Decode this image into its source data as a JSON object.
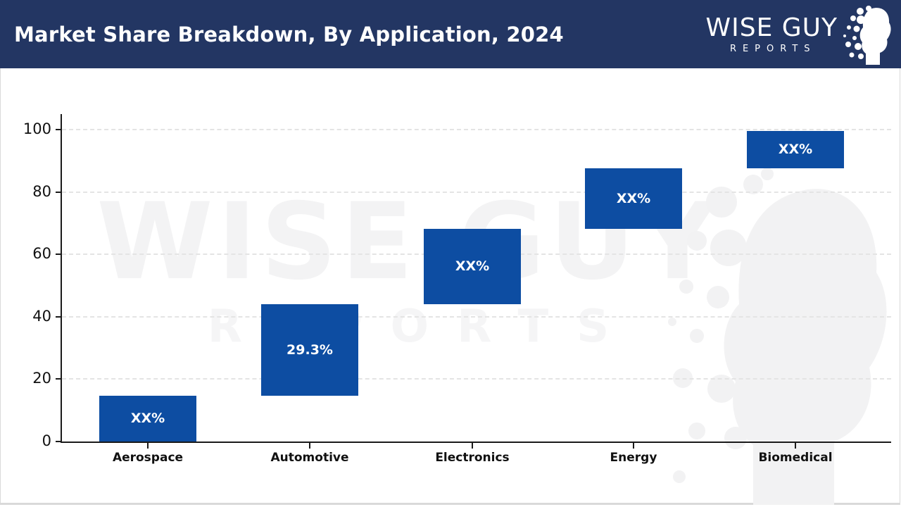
{
  "header": {
    "title": "Market Share Breakdown, By Application, 2024",
    "logo": {
      "line1": "WISE GUY",
      "line2": "REPORTS"
    }
  },
  "watermark": {
    "line1": "WISE GUY",
    "line2": "REPORTS"
  },
  "chart_data": {
    "type": "bar",
    "subtype": "waterfall-floating-bars",
    "title": "Market Share Breakdown, By Application, 2024",
    "categories": [
      "Aerospace",
      "Automotive",
      "Electronics",
      "Energy",
      "Biomedical"
    ],
    "segments": [
      {
        "category": "Aerospace",
        "start": 0,
        "end": 14.7,
        "label": "XX%"
      },
      {
        "category": "Automotive",
        "start": 14.7,
        "end": 44.0,
        "label": "29.3%"
      },
      {
        "category": "Electronics",
        "start": 44.0,
        "end": 68.2,
        "label": "XX%"
      },
      {
        "category": "Energy",
        "start": 68.2,
        "end": 87.6,
        "label": "XX%"
      },
      {
        "category": "Biomedical",
        "start": 87.6,
        "end": 99.6,
        "label": "XX%"
      }
    ],
    "y_ticks": [
      0,
      20,
      40,
      60,
      80,
      100
    ],
    "ylim": [
      0,
      105
    ],
    "xlabel": "",
    "ylabel": "",
    "grid": "horizontal-dashed",
    "legend": "none"
  },
  "colors": {
    "header_bg": "#233663",
    "bar_fill": "#0d4da2",
    "bar_label": "#ffffff",
    "axis": "#1a1a1a",
    "gridline": "#e4e4e4",
    "watermark": "#f3f3f4",
    "border": "#d9d9d9"
  }
}
